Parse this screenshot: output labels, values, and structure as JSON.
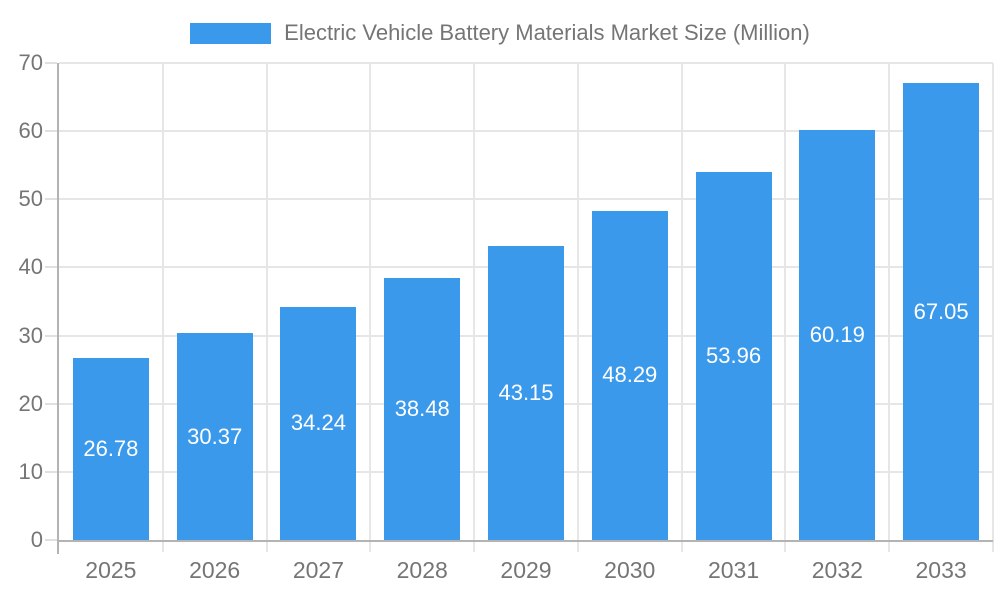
{
  "chart_data": {
    "type": "bar",
    "title": "Electric Vehicle Battery Materials Market Size (Million)",
    "categories": [
      "2025",
      "2026",
      "2027",
      "2028",
      "2029",
      "2030",
      "2031",
      "2032",
      "2033"
    ],
    "values": [
      26.78,
      30.37,
      34.24,
      38.48,
      43.15,
      48.29,
      53.96,
      60.19,
      67.05
    ],
    "xlabel": "",
    "ylabel": "",
    "ylim": [
      0,
      70
    ],
    "yticks": [
      0,
      10,
      20,
      30,
      40,
      50,
      60,
      70
    ],
    "grid": true,
    "legend_position": "top",
    "bar_value_labels_visible": true
  },
  "colors": {
    "bar": "#3B99EC",
    "bar_label_text": "#FFFFFF",
    "axis_line": "#B3B3B3",
    "gridline": "#E6E6E6",
    "tick": "#E0E0E0",
    "axis_text": "#757575",
    "legend_text": "#757575",
    "background": "#FFFFFF"
  }
}
